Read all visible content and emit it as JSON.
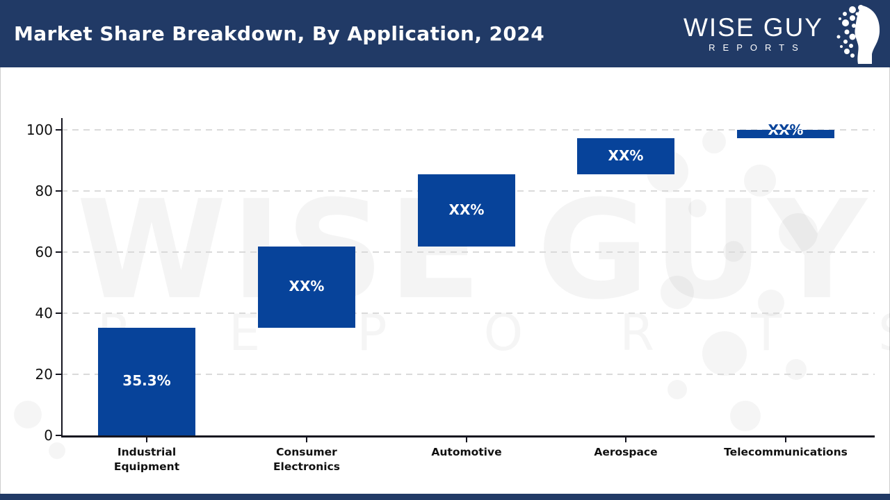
{
  "header": {
    "title": "Market Share Breakdown, By Application, 2024",
    "logo_line1": "WISE GUY",
    "logo_line2": "REPORTS"
  },
  "watermark": {
    "line1": "WISE GUY",
    "line2": "R E P O R T S"
  },
  "colors": {
    "header_navy": "#213a66",
    "footer_navy": "#213a66",
    "bar_blue": "#07439a",
    "bar_label_white": "#ffffff",
    "grid_gray": "#dadada",
    "axis_black": "#15151f"
  },
  "chart_data": {
    "type": "bar",
    "subtype": "waterfall",
    "title": "Market Share Breakdown, By Application, 2024",
    "xlabel": "",
    "ylabel": "",
    "ylim": [
      0,
      100
    ],
    "yticks": [
      0,
      20,
      40,
      60,
      80,
      100
    ],
    "grid": "horizontal-dashed",
    "legend": "none",
    "categories": [
      "Industrial Equipment",
      "Consumer Electronics",
      "Automotive",
      "Aerospace",
      "Telecommunications"
    ],
    "category_label_lines": [
      [
        "Industrial",
        "Equipment"
      ],
      [
        "Consumer",
        "Electronics"
      ],
      [
        "Automotive"
      ],
      [
        "Aerospace"
      ],
      [
        "Telecommunications"
      ]
    ],
    "segments": [
      {
        "category": "Industrial Equipment",
        "start": 0,
        "end": 35.3,
        "value": 35.3,
        "label": "35.3%"
      },
      {
        "category": "Consumer Electronics",
        "start": 35.3,
        "end": 61.8,
        "value": 26.5,
        "label": "XX%"
      },
      {
        "category": "Automotive",
        "start": 61.8,
        "end": 85.5,
        "value": 23.7,
        "label": "XX%"
      },
      {
        "category": "Aerospace",
        "start": 85.5,
        "end": 97.3,
        "value": 11.8,
        "label": "XX%"
      },
      {
        "category": "Telecommunications",
        "start": 97.3,
        "end": 100,
        "value": 2.7,
        "label": "XX%"
      }
    ]
  }
}
